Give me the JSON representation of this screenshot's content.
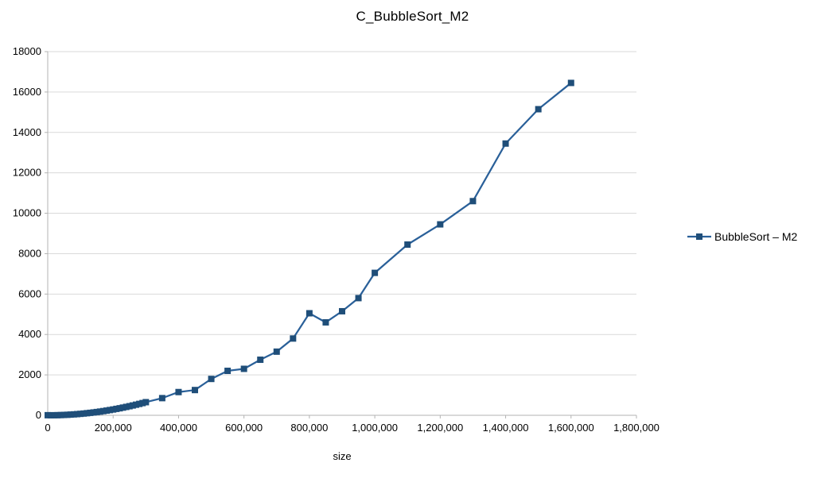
{
  "chart": {
    "title": "C_BubbleSort_M2",
    "x_axis_title": "size",
    "legend_label": "BubbleSort – M2",
    "background_color": "#ffffff",
    "gridline_color": "#d9d9d9",
    "axis_color": "#b3b3b3",
    "line_color": "#2A6099",
    "marker_color": "#1F4E79"
  },
  "chart_data": {
    "type": "line",
    "title": "C_BubbleSort_M2",
    "xlabel": "size",
    "ylabel": "",
    "xlim": [
      0,
      1800000
    ],
    "ylim": [
      0,
      18000
    ],
    "x_ticks": [
      0,
      200000,
      400000,
      600000,
      800000,
      1000000,
      1200000,
      1400000,
      1600000,
      1800000
    ],
    "y_ticks": [
      0,
      2000,
      4000,
      6000,
      8000,
      10000,
      12000,
      14000,
      16000,
      18000
    ],
    "grid": "horizontal",
    "legend_position": "right",
    "series": [
      {
        "name": "BubbleSort – M2",
        "marker": "square",
        "color": "#2A6099",
        "marker_color": "#1F4E79",
        "x": [
          0,
          10000,
          20000,
          30000,
          40000,
          50000,
          60000,
          70000,
          80000,
          90000,
          100000,
          110000,
          120000,
          130000,
          140000,
          150000,
          160000,
          170000,
          180000,
          190000,
          200000,
          210000,
          220000,
          230000,
          240000,
          250000,
          260000,
          270000,
          280000,
          290000,
          300000,
          350000,
          400000,
          450000,
          500000,
          550000,
          600000,
          650000,
          700000,
          750000,
          800000,
          850000,
          900000,
          950000,
          1000000,
          1100000,
          1200000,
          1300000,
          1400000,
          1500000,
          1600000
        ],
        "y": [
          5,
          1,
          3,
          6,
          12,
          18,
          26,
          35,
          46,
          58,
          72,
          87,
          104,
          122,
          141,
          162,
          184,
          208,
          233,
          260,
          288,
          318,
          348,
          381,
          415,
          450,
          487,
          525,
          564,
          605,
          650,
          850,
          1150,
          1250,
          1800,
          2200,
          2300,
          2750,
          3150,
          3800,
          5050,
          4600,
          5150,
          5800,
          7050,
          8450,
          9450,
          10600,
          13450,
          15150,
          16450
        ]
      }
    ]
  }
}
